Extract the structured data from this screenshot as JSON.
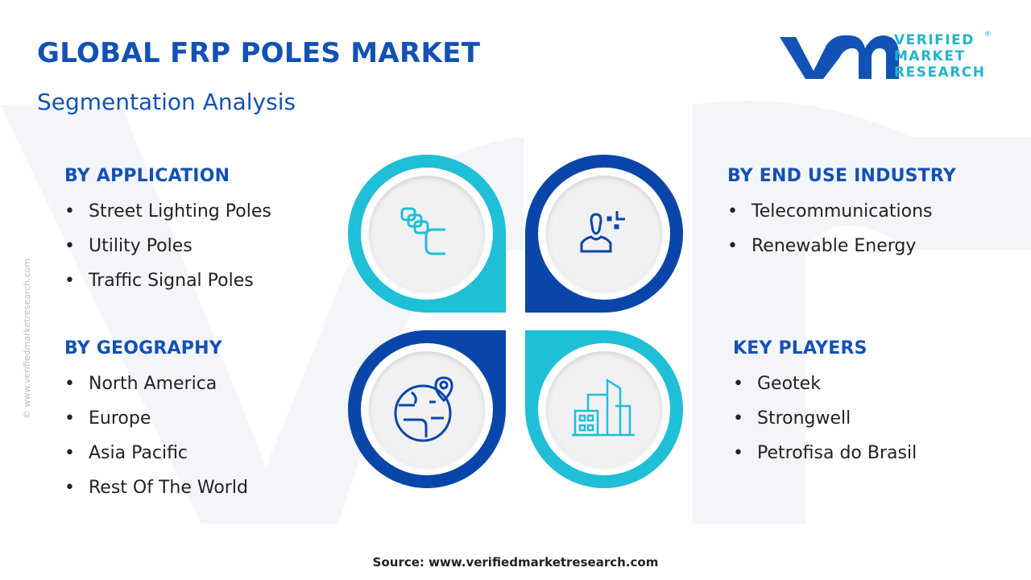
{
  "header": {
    "title": "GLOBAL FRP POLES MARKET",
    "subtitle": "Segmentation Analysis"
  },
  "logo": {
    "text_lines": [
      "VERIFIED",
      "MARKET",
      "RESEARCH"
    ],
    "registered": "®"
  },
  "side_text": "© www.verifiedmarketresearch.com",
  "colors": {
    "primary": "#1351b4",
    "teal": "#1fbfd7",
    "dark_blue": "#0a46a9"
  },
  "segments": {
    "application": {
      "heading": "BY APPLICATION",
      "items": [
        "Street Lighting Poles",
        "Utility Poles",
        "Traffic Signal Poles"
      ],
      "icon": "blocks-icon"
    },
    "end_use": {
      "heading": "BY END USE INDUSTRY",
      "items": [
        "Telecommunications",
        "Renewable Energy"
      ],
      "icon": "person-icon"
    },
    "geography": {
      "heading": "BY GEOGRAPHY",
      "items": [
        "North America",
        "Europe",
        "Asia Pacific",
        "Rest Of The World"
      ],
      "icon": "globe-pin-icon"
    },
    "key_players": {
      "heading": "KEY PLAYERS",
      "items": [
        "Geotek",
        "Strongwell",
        "Petrofisa do Brasil"
      ],
      "icon": "buildings-icon"
    }
  },
  "footer": {
    "source": "Source: www.verifiedmarketresearch.com"
  }
}
